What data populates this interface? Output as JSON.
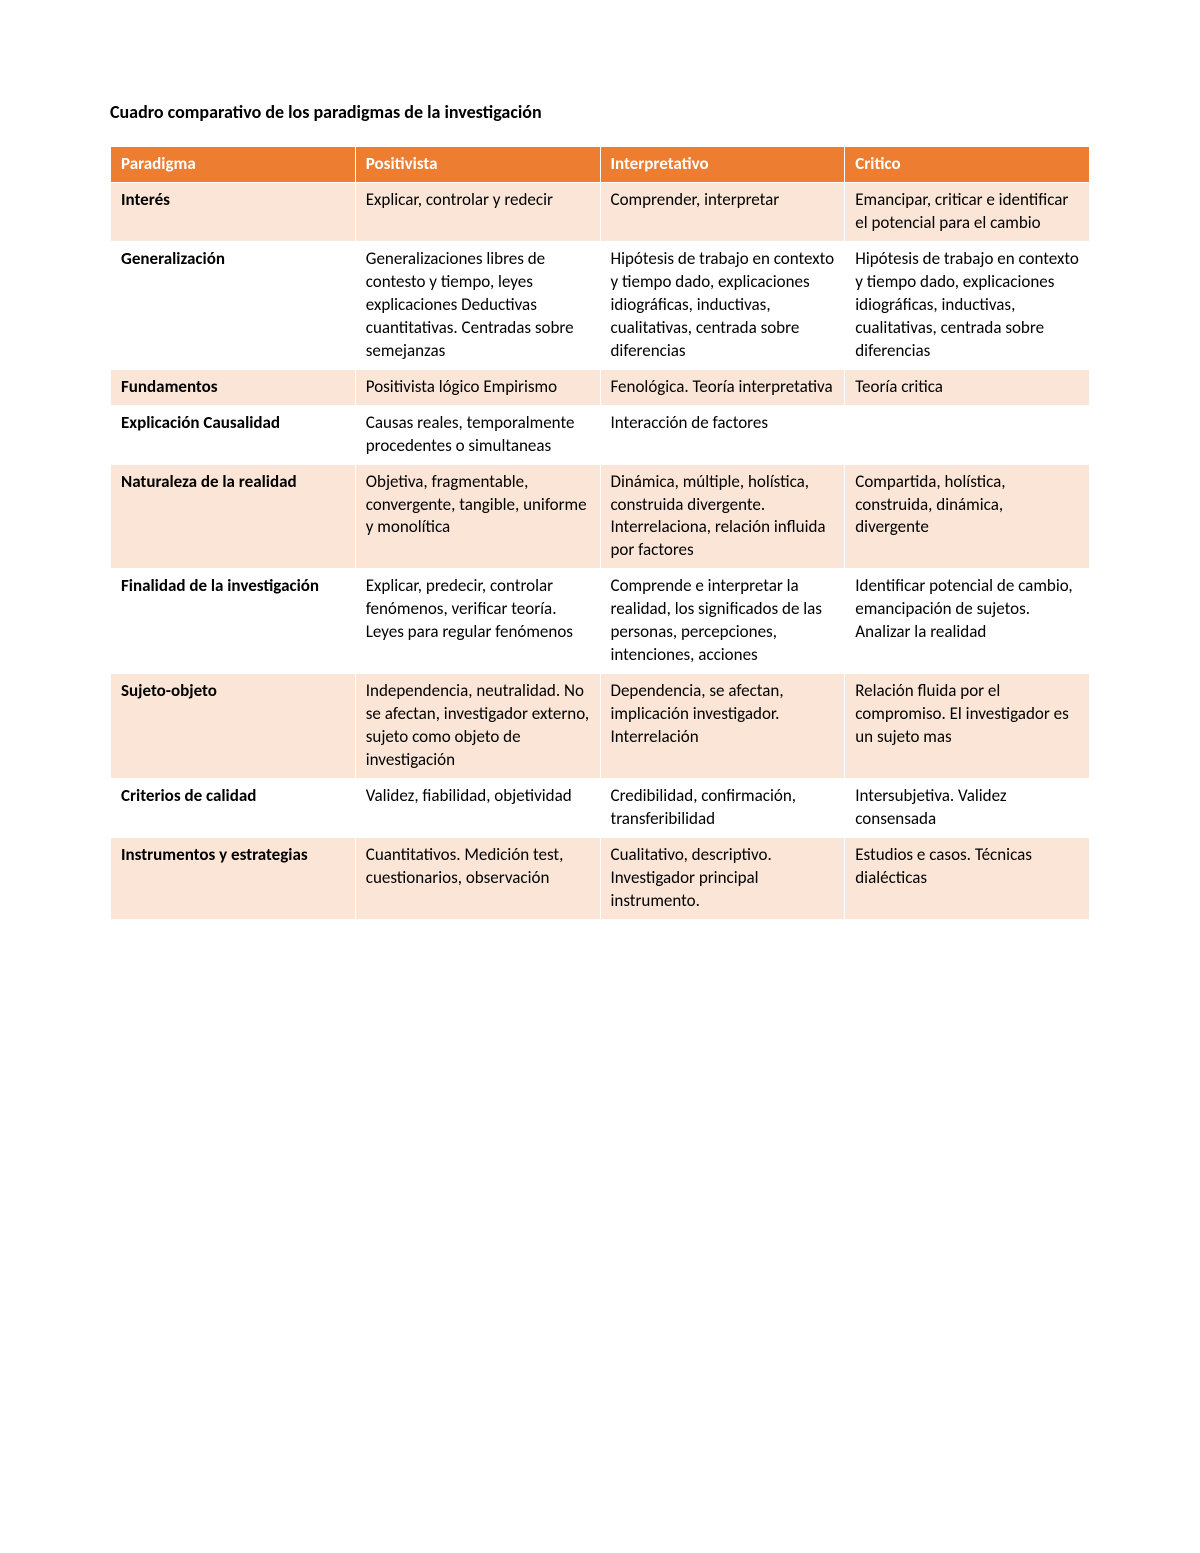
{
  "title": "Cuadro comparativo de los paradigmas de la investigación",
  "table": {
    "columns": [
      "Paradigma",
      "Positivista",
      "Interpretativo",
      "Critico"
    ],
    "column_widths": [
      "25%",
      "25%",
      "25%",
      "25%"
    ],
    "header_bg": "#ed7d31",
    "header_fg": "#ffffff",
    "band_odd_bg": "#fbe5d6",
    "band_even_bg": "#ffffff",
    "border_color": "#ffffff",
    "font_family": "Calibri",
    "body_font_size_pt": 12,
    "title_font_size_pt": 13,
    "rows": [
      {
        "label": "Interés",
        "cells": [
          "Explicar, controlar y redecir",
          "Comprender, interpretar",
          "Emancipar, criticar e identificar el potencial para el cambio"
        ]
      },
      {
        "label": "Generalización",
        "cells": [
          "Generalizaciones libres de contesto y tiempo, leyes explicaciones Deductivas cuantitativas. Centradas sobre semejanzas",
          "Hipótesis de trabajo en contexto y tiempo dado, explicaciones idiográficas, inductivas, cualitativas, centrada sobre diferencias",
          "Hipótesis de trabajo en contexto y tiempo dado, explicaciones idiográficas, inductivas, cualitativas, centrada sobre diferencias"
        ]
      },
      {
        "label": "Fundamentos",
        "cells": [
          "Positivista lógico Empirismo",
          "Fenológica. Teoría interpretativa",
          "Teoría critica"
        ]
      },
      {
        "label": "Explicación Causalidad",
        "cells": [
          "Causas reales, temporalmente procedentes o simultaneas",
          "Interacción de factores",
          ""
        ]
      },
      {
        "label": "Naturaleza de la realidad",
        "cells": [
          "Objetiva, fragmentable, convergente, tangible, uniforme y monolítica",
          "Dinámica, múltiple, holística, construida divergente. Interrelaciona, relación influida por factores",
          "Compartida, holística, construida, dinámica, divergente"
        ]
      },
      {
        "label": "Finalidad de la investigación",
        "cells": [
          "Explicar, predecir, controlar fenómenos, verificar teoría. Leyes para regular fenómenos",
          "Comprende e interpretar la realidad, los significados de las personas, percepciones, intenciones, acciones",
          "Identificar potencial de cambio, emancipación de sujetos. Analizar la realidad"
        ]
      },
      {
        "label": "Sujeto-objeto",
        "cells": [
          "Independencia, neutralidad. No se afectan, investigador externo, sujeto como objeto de investigación",
          "Dependencia, se afectan, implicación investigador. Interrelación",
          "Relación fluida por el compromiso. El investigador es un sujeto mas"
        ]
      },
      {
        "label": "Criterios de calidad",
        "cells": [
          "Validez, fiabilidad, objetividad",
          "Credibilidad, confirmación, transferibilidad",
          "Intersubjetiva. Validez consensada"
        ]
      },
      {
        "label": "Instrumentos y estrategias",
        "cells": [
          "Cuantitativos. Medición test, cuestionarios, observación",
          "Cualitativo, descriptivo. Investigador principal instrumento.",
          "Estudios e casos. Técnicas dialécticas"
        ]
      }
    ]
  }
}
